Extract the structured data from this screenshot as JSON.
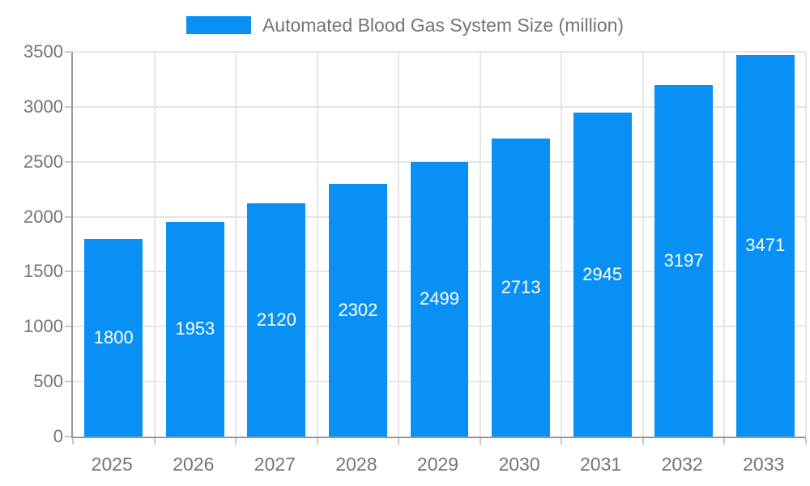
{
  "chart_data": {
    "type": "bar",
    "title": "Automated Blood Gas System Size (million)",
    "categories": [
      "2025",
      "2026",
      "2027",
      "2028",
      "2029",
      "2030",
      "2031",
      "2032",
      "2033"
    ],
    "values": [
      1800,
      1953,
      2120,
      2302,
      2499,
      2713,
      2945,
      3197,
      3471
    ],
    "xlabel": "",
    "ylabel": "",
    "ylim": [
      0,
      3500
    ],
    "yticks": [
      0,
      500,
      1000,
      1500,
      2000,
      2500,
      3000,
      3500
    ],
    "grid": true,
    "legend_position": "top",
    "data_label_position": "center-of-bar",
    "colors": {
      "bar": "#0990F5",
      "bar_label": "#ffffff",
      "axis_text": "#757575",
      "grid_line": "#e6e6e6",
      "axis_line": "#999999",
      "tick_mark": "#c9c9c9",
      "background": "#ffffff"
    }
  }
}
